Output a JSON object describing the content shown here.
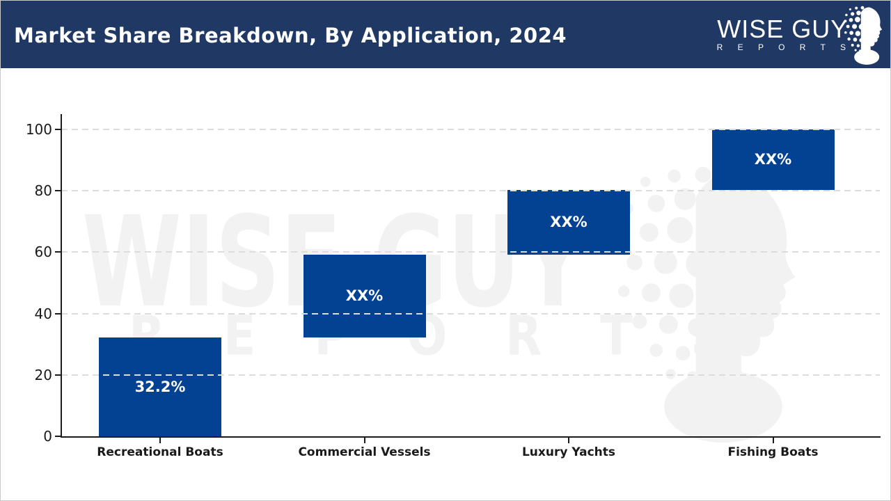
{
  "header": {
    "title": "Market Share Breakdown, By Application, 2024",
    "logo": {
      "wordmark": "WISE GUY",
      "subtitle": "R E P O R T S"
    }
  },
  "watermark": {
    "wordmark": "WISE GUY",
    "subtitle": "R E P O R T S"
  },
  "colors": {
    "header_bg": "#1f3864",
    "bar_fill": "#034292",
    "bar_label_text": "#ffffff",
    "gridline": "#dcdcdc",
    "axis": "#1b1b1b",
    "tick_label": "#1a1a1a",
    "watermark": "#f2f2f3",
    "background": "#ffffff"
  },
  "chart_data": {
    "type": "bar",
    "subtype": "waterfall",
    "title": "Market Share Breakdown, By Application, 2024",
    "categories": [
      "Recreational Boats",
      "Commercial Vessels",
      "Luxury Yachts",
      "Fishing Boats"
    ],
    "segments": [
      {
        "category": "Recreational Boats",
        "start": 0,
        "end": 32.2,
        "label": "32.2%"
      },
      {
        "category": "Commercial Vessels",
        "start": 32.2,
        "end": 59.2,
        "label": "XX%"
      },
      {
        "category": "Luxury Yachts",
        "start": 59.2,
        "end": 80.3,
        "label": "XX%"
      },
      {
        "category": "Fishing Boats",
        "start": 80.3,
        "end": 100,
        "label": "XX%"
      }
    ],
    "xlabel": "",
    "ylabel": "",
    "ylim": [
      0,
      100
    ],
    "yticks": [
      0,
      20,
      40,
      60,
      80,
      100
    ],
    "grid": "horizontal-dashed",
    "legend": null
  }
}
